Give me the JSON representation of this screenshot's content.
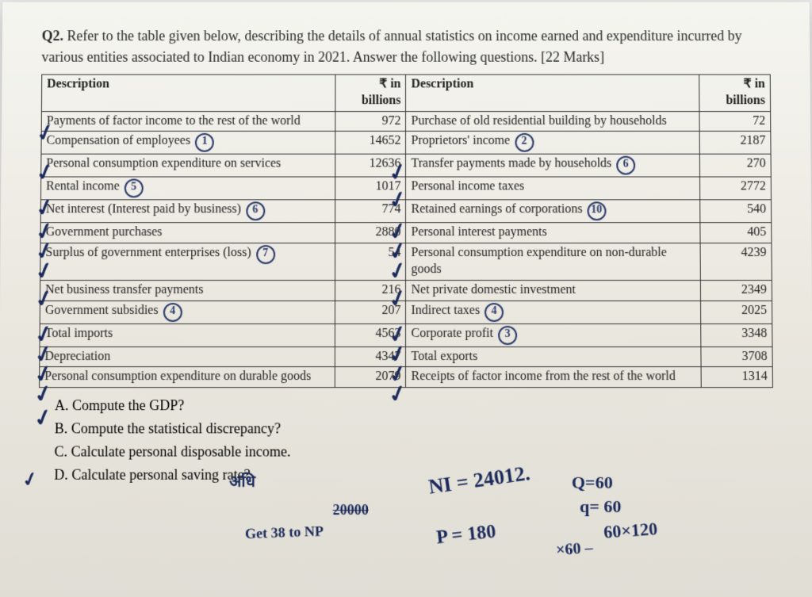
{
  "question": {
    "number": "Q2.",
    "text": "Refer to the table given below, describing the details of annual statistics on income earned and expenditure incurred by various entities associated to Indian economy in 2021. Answer the following questions. [22 Marks]"
  },
  "table": {
    "headers": {
      "desc1": "Description",
      "val1_unit": "₹ in billions",
      "desc2": "Description",
      "val2_unit": "₹ in billions"
    },
    "rows": [
      {
        "d1": "Payments of factor income to the rest of the world",
        "v1": "972",
        "d2": "Purchase of old residential building by households",
        "v2": "72"
      },
      {
        "d1": "Compensation of employees",
        "v1": "14652",
        "d2": "Proprietors' income",
        "v2": "2187",
        "c1": "1",
        "c2": "2"
      },
      {
        "d1": "Personal consumption expenditure on services",
        "v1": "12636",
        "d2": "Transfer payments made by households",
        "v2": "270",
        "c2b": "6"
      },
      {
        "d1": "Rental income",
        "v1": "1017",
        "d2": "Personal income taxes",
        "v2": "2772",
        "c1": "5"
      },
      {
        "d1": "Net interest (Interest paid by business)",
        "v1": "774",
        "d2": "Retained earnings of corporations",
        "v2": "540",
        "c1": "6",
        "c2": "10"
      },
      {
        "d1": "Government purchases",
        "v1": "2880",
        "d2": "Personal interest payments",
        "v2": "405"
      },
      {
        "d1": "Surplus of government enterprises (loss)",
        "v1": "54",
        "d2": "Personal consumption expenditure on non-durable goods",
        "v2": "4239",
        "c1": "7"
      },
      {
        "d1": "Net business transfer payments",
        "v1": "216",
        "d2": "Net private domestic investment",
        "v2": "2349"
      },
      {
        "d1": "Government subsidies",
        "v1": "207",
        "d2": "Indirect taxes",
        "v2": "2025",
        "c1": "4",
        "c2": "4"
      },
      {
        "d1": "Total imports",
        "v1": "4563",
        "d2": "Corporate profit",
        "v2": "3348",
        "c2": "3"
      },
      {
        "d1": "Depreciation",
        "v1": "4347",
        "d2": "Total exports",
        "v2": "3708"
      },
      {
        "d1": "Personal consumption expenditure on durable goods",
        "v1": "2079",
        "d2": "Receipts of factor income from the rest of the world",
        "v2": "1314"
      }
    ]
  },
  "subquestions": {
    "A": "A. Compute the GDP?",
    "B": "B. Compute the statistical discrepancy?",
    "C": "C. Calculate personal disposable income.",
    "D": "D. Calculate personal saving rate?"
  },
  "handwriting": {
    "ni": "NI = 24012.",
    "q1": "Q=60",
    "q2": "q= 60",
    "p": "P = 180",
    "calc1": "60×120",
    "calc2": "×60 –",
    "val2": "20000",
    "scribble1": "अधि",
    "scribble2": "Get 38 to NP"
  }
}
